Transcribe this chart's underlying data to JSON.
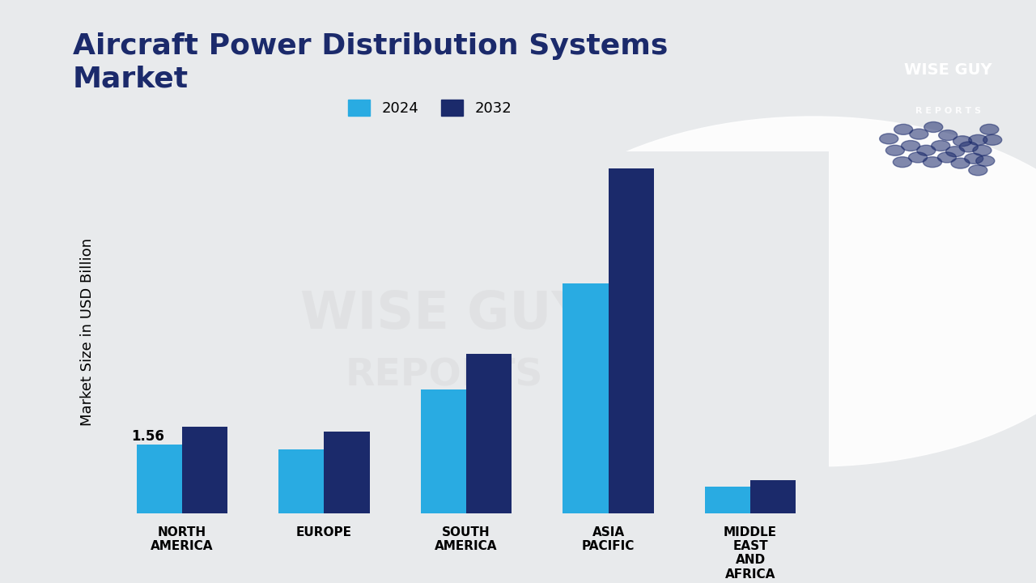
{
  "title": "Aircraft Power Distribution Systems\nMarket",
  "ylabel": "Market Size in USD Billion",
  "categories": [
    "NORTH\nAMERICA",
    "EUROPE",
    "SOUTH\nAMERICA",
    "ASIA\nPACIFIC",
    "MIDDLE\nEAST\nAND\nAFRICA"
  ],
  "values_2024": [
    1.56,
    1.45,
    2.8,
    5.2,
    0.6
  ],
  "values_2032": [
    1.95,
    1.85,
    3.6,
    7.8,
    0.75
  ],
  "color_2024": "#29ABE2",
  "color_2032": "#1B2A6B",
  "annotation_text": "1.56",
  "bg_color": "#E8EAEC",
  "right_panel_color": "#1B2A6B",
  "title_color": "#1B2A6B",
  "legend_labels": [
    "2024",
    "2032"
  ],
  "bar_width": 0.32,
  "title_fontsize": 26,
  "axis_label_fontsize": 13,
  "tick_fontsize": 11,
  "legend_fontsize": 13,
  "annotation_fontsize": 12,
  "bottom_bar_color": "#2D7D8F",
  "watermark_color": "#cccccc",
  "wiseguy_text1": "WISE GUY",
  "wiseguy_text2": "R E P O R T S"
}
